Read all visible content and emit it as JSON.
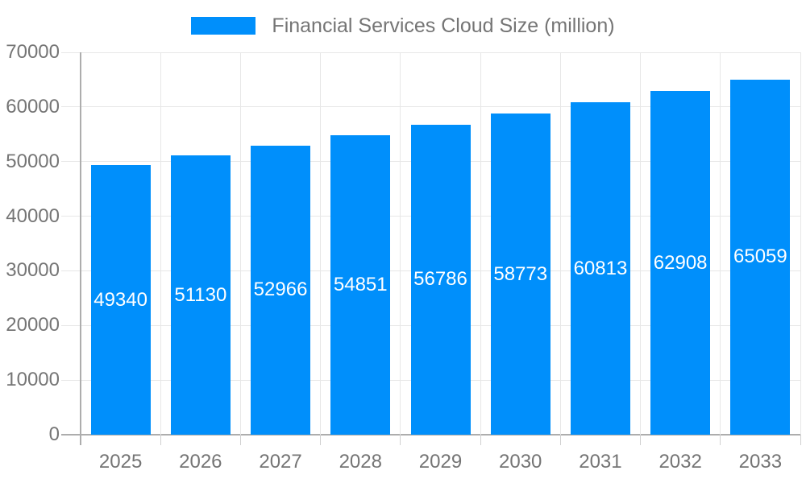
{
  "chart_data": {
    "type": "bar",
    "title": "Financial Services Cloud Size (million)",
    "categories": [
      "2025",
      "2026",
      "2027",
      "2028",
      "2029",
      "2030",
      "2031",
      "2032",
      "2033"
    ],
    "values": [
      49340,
      51130,
      52966,
      54851,
      56786,
      58773,
      60813,
      62908,
      65059
    ],
    "xlabel": "",
    "ylabel": "",
    "ylim": [
      0,
      70000
    ],
    "yticks": [
      0,
      10000,
      20000,
      30000,
      40000,
      50000,
      60000,
      70000
    ],
    "grid": "horizontal-and-vertical",
    "legend_position": "top-center",
    "data_labels": "white, inside bar, vertically centered"
  },
  "colors": {
    "bar": "#008FFB",
    "data_label_text": "#ffffff",
    "axis_text": "#757575",
    "legend_text": "#757575",
    "gridline": "#e7e7e7",
    "axis_line": "#adadad",
    "tick": "#d0d0d0",
    "background": "#ffffff"
  }
}
